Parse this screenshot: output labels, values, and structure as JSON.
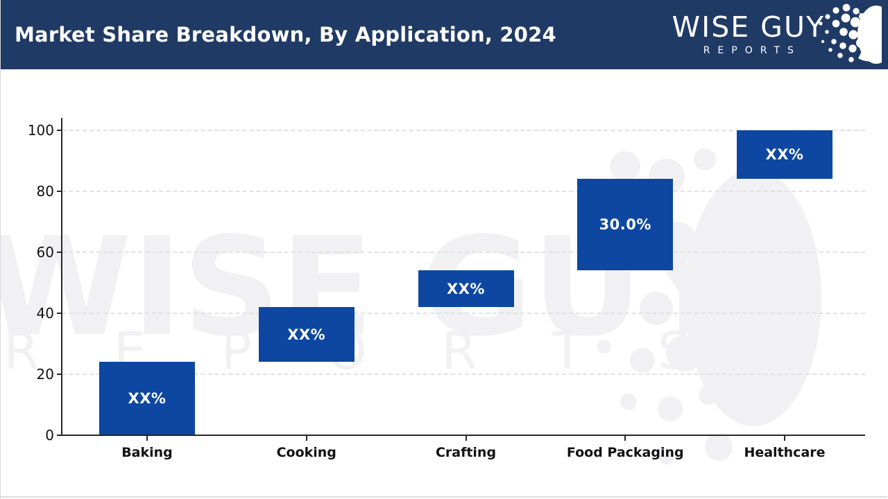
{
  "header": {
    "title": "Market Share Breakdown, By Application, 2024",
    "logo": {
      "line1": "WISE GUY",
      "line2": "REPORTS"
    }
  },
  "watermark": {
    "line1": "WISE GUY",
    "line2": "R E P O R T S"
  },
  "colors": {
    "header_bg": "#203a66",
    "bar": "#0d47a1",
    "grid": "#e1e1e1",
    "axis": "#262626",
    "tick_label": "#111111",
    "bar_label": "#ffffff",
    "watermark": "#f1f1f4"
  },
  "chart_data": {
    "type": "bar",
    "subtype": "waterfall",
    "title": "Market Share Breakdown, By Application, 2024",
    "categories": [
      "Baking",
      "Cooking",
      "Crafting",
      "Food Packaging",
      "Healthcare"
    ],
    "segments": [
      {
        "category": "Baking",
        "start": 0,
        "end": 24,
        "value": 24,
        "label": "XX%"
      },
      {
        "category": "Cooking",
        "start": 24,
        "end": 42,
        "value": 18,
        "label": "XX%"
      },
      {
        "category": "Crafting",
        "start": 42,
        "end": 54,
        "value": 12,
        "label": "XX%"
      },
      {
        "category": "Food Packaging",
        "start": 54,
        "end": 84,
        "value": 30,
        "label": "30.0%"
      },
      {
        "category": "Healthcare",
        "start": 84,
        "end": 100,
        "value": 16,
        "label": "XX%"
      }
    ],
    "xlabel": "",
    "ylabel": "",
    "ylim": [
      0,
      100
    ],
    "yticks": [
      0,
      20,
      40,
      60,
      80,
      100
    ],
    "grid": true,
    "legend_position": null
  }
}
